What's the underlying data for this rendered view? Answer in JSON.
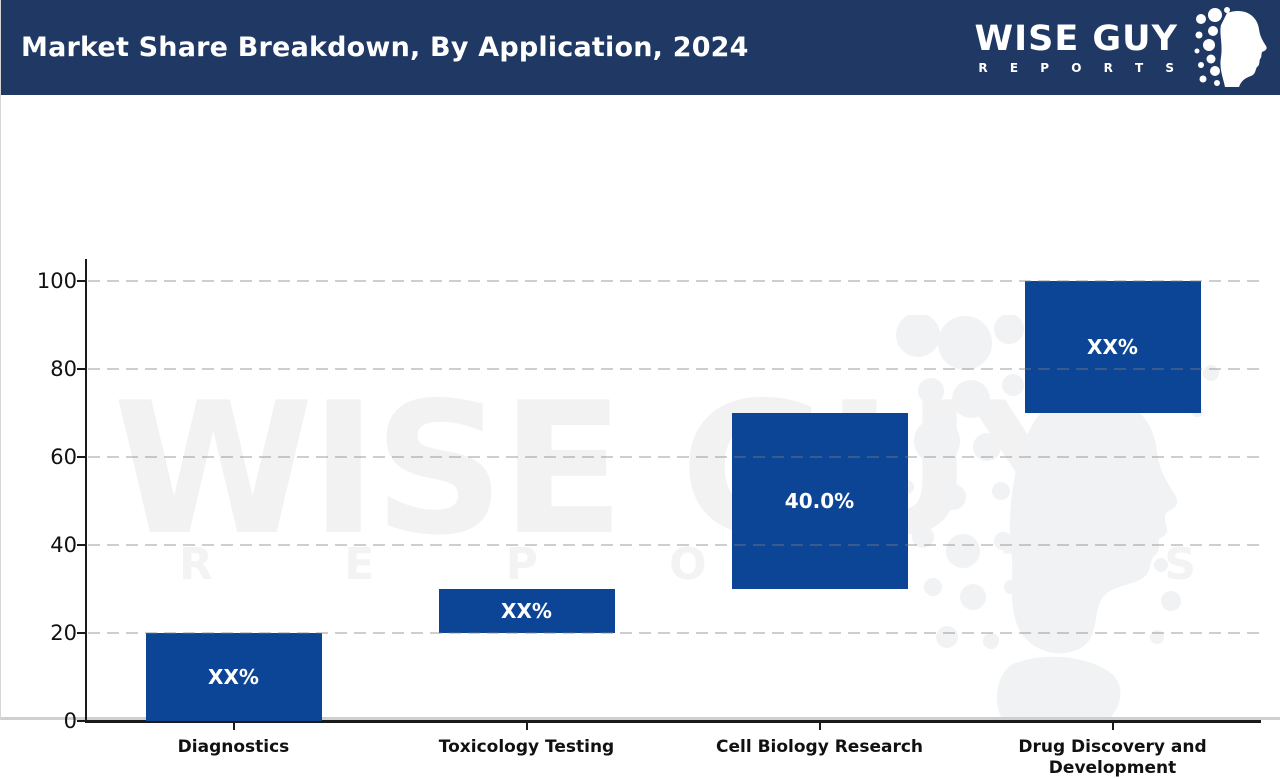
{
  "header": {
    "title": "Market Share Breakdown, By Application, 2024",
    "logo": {
      "line1": "WISE GUY",
      "line2": "R E P O R T S"
    }
  },
  "watermark": {
    "line1": "WISE GUY",
    "line2": "R E P O R T S"
  },
  "chart_data": {
    "type": "bar",
    "variant": "floating-waterfall",
    "title": "Market Share Breakdown, By Application, 2024",
    "categories": [
      "Diagnostics",
      "Toxicology Testing",
      "Cell Biology Research",
      "Drug Discovery and Development"
    ],
    "series": [
      {
        "name": "Market Share",
        "segments": [
          {
            "category": "Diagnostics",
            "start": 0,
            "end": 20,
            "label": "XX%"
          },
          {
            "category": "Toxicology Testing",
            "start": 20,
            "end": 30,
            "label": "XX%"
          },
          {
            "category": "Cell Biology Research",
            "start": 30,
            "end": 70,
            "label": "40.0%"
          },
          {
            "category": "Drug Discovery and Development",
            "start": 70,
            "end": 100,
            "label": "XX%"
          }
        ]
      }
    ],
    "xlabel": "",
    "ylabel": "",
    "ylim": [
      0,
      100
    ],
    "yticks": [
      0,
      20,
      40,
      60,
      80,
      100
    ],
    "grid": "horizontal-dashed",
    "legend": "none",
    "bar_color": "#0d4596",
    "bar_label_color": "#ffffff",
    "axis_color": "#1a1a1a",
    "header_color": "#203864",
    "watermark_color": "#f2f2f2"
  }
}
